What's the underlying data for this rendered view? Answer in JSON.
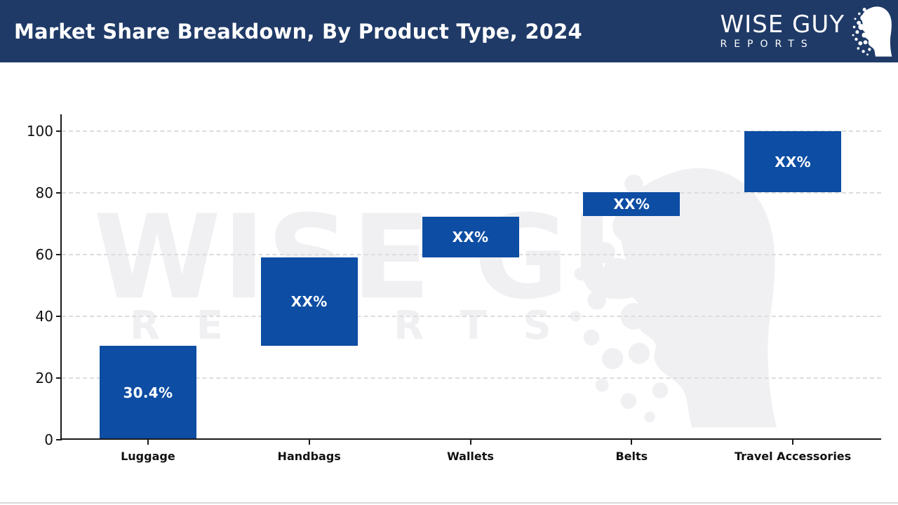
{
  "header": {
    "title": "Market Share Breakdown, By Product Type, 2024",
    "background_color": "#1f3a67",
    "logo": {
      "wordmark": "WISE GUY",
      "subtext": "REPORTS",
      "head_icon": "dotted-head-profile"
    }
  },
  "watermark": {
    "line1": "WISE GUY",
    "line2": "R E P O R T S"
  },
  "chart_data": {
    "type": "bar",
    "variant": "waterfall",
    "title": "Market Share Breakdown, By Product Type, 2024",
    "categories": [
      "Luggage",
      "Handbags",
      "Wallets",
      "Belts",
      "Travel Accessories"
    ],
    "segments": [
      {
        "category": "Luggage",
        "start": 0,
        "end": 30.4,
        "label": "30.4%"
      },
      {
        "category": "Handbags",
        "start": 30.4,
        "end": 59.1,
        "label": "XX%"
      },
      {
        "category": "Wallets",
        "start": 59.1,
        "end": 72.3,
        "label": "XX%"
      },
      {
        "category": "Belts",
        "start": 72.4,
        "end": 80.2,
        "label": "XX%"
      },
      {
        "category": "Travel Accessories",
        "start": 80.2,
        "end": 100,
        "label": "XX%"
      }
    ],
    "xlabel": "",
    "ylabel": "",
    "yticks": [
      0,
      20,
      40,
      60,
      80,
      100
    ],
    "ylim": [
      0,
      105
    ],
    "grid": "horizontal-dashed",
    "legend": "none",
    "bar_color": "#0d4da3",
    "bar_label_color": "#ffffff",
    "gridline_color": "#dcdcdc",
    "axis_color": "#1a1a1a"
  }
}
